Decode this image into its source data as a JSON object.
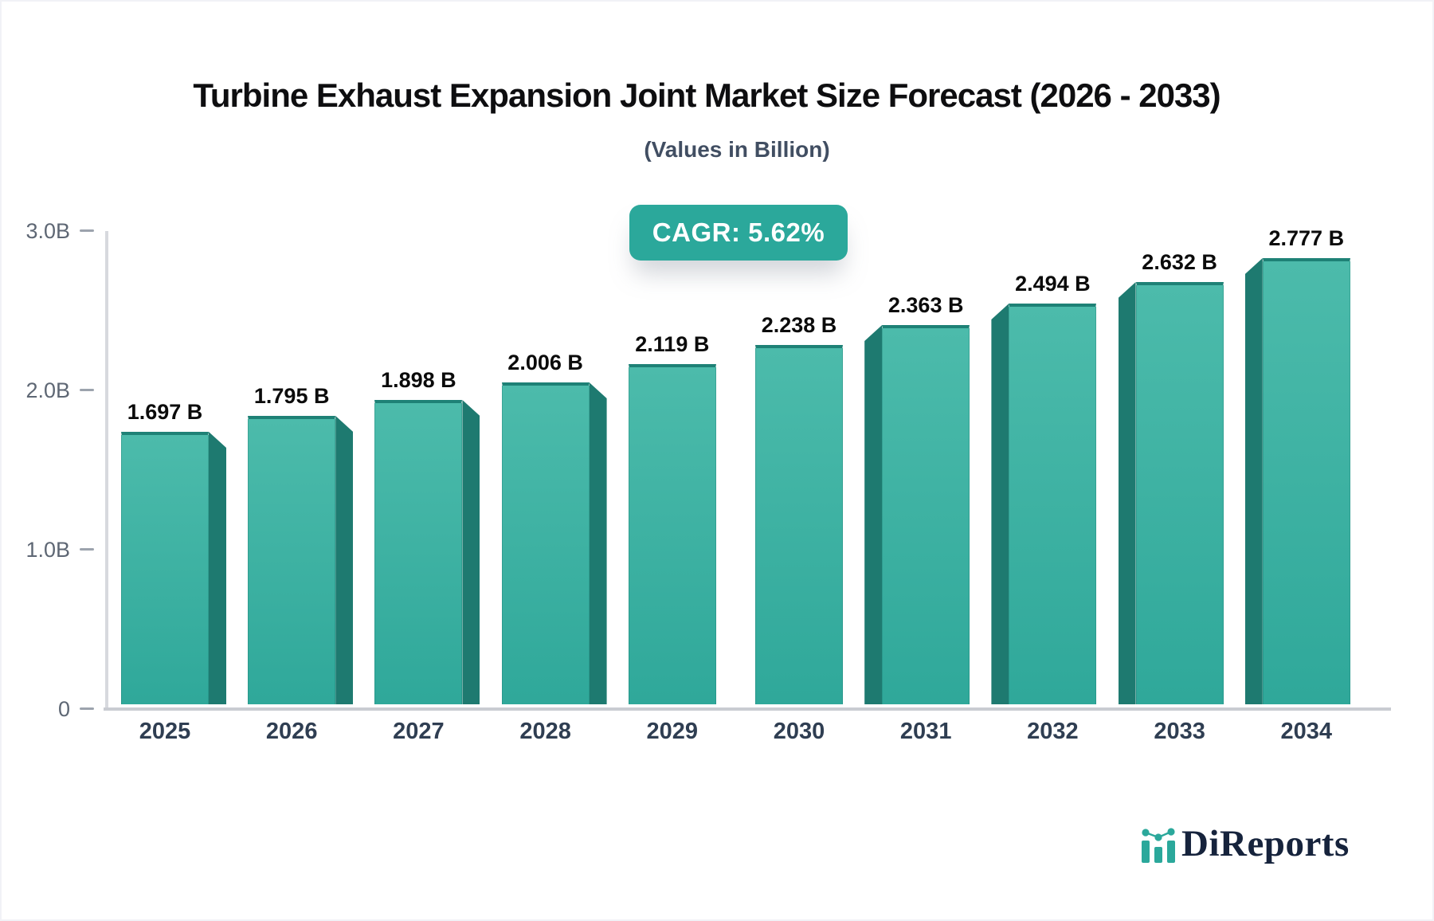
{
  "chart_data": {
    "type": "bar",
    "title": "Turbine Exhaust Expansion Joint Market Size Forecast (2026 - 2033)",
    "subtitle": "(Values in Billion)",
    "cagr_badge": "CAGR: 5.62%",
    "categories": [
      "2025",
      "2026",
      "2027",
      "2028",
      "2029",
      "2030",
      "2031",
      "2032",
      "2033",
      "2034"
    ],
    "values": [
      1.697,
      1.795,
      1.898,
      2.006,
      2.119,
      2.238,
      2.363,
      2.494,
      2.632,
      2.777
    ],
    "value_labels": [
      "1.697 B",
      "1.795 B",
      "1.898 B",
      "2.006 B",
      "2.119 B",
      "2.238 B",
      "2.363 B",
      "2.494 B",
      "2.632 B",
      "2.777 B"
    ],
    "y_ticks": [
      {
        "label": "0",
        "value": 0
      },
      {
        "label": "1.0B",
        "value": 1
      },
      {
        "label": "2.0B",
        "value": 2
      },
      {
        "label": "3.0B",
        "value": 3
      }
    ],
    "ylim": [
      0,
      3.0
    ],
    "grid": false,
    "legend": "none",
    "colors": {
      "bar_top": "#4CBBAB",
      "bar_bottom": "#2FA89A",
      "bar_edge": "#1E8176",
      "bar_side": "#1E7A70",
      "axis_line": "#D7D9DE",
      "baseline": "#C9CCD2",
      "tick_text": "#5E6774",
      "year_text": "#2F3E52",
      "value_text": "#0B0B0B",
      "badge_bg": "#2BA89B",
      "badge_text": "#FFFFFF"
    }
  },
  "logo": {
    "text": "DiReports",
    "icon": "bar-chart-with-trend-dots",
    "icon_color": "#2BA89B",
    "text_color": "#16233C"
  }
}
